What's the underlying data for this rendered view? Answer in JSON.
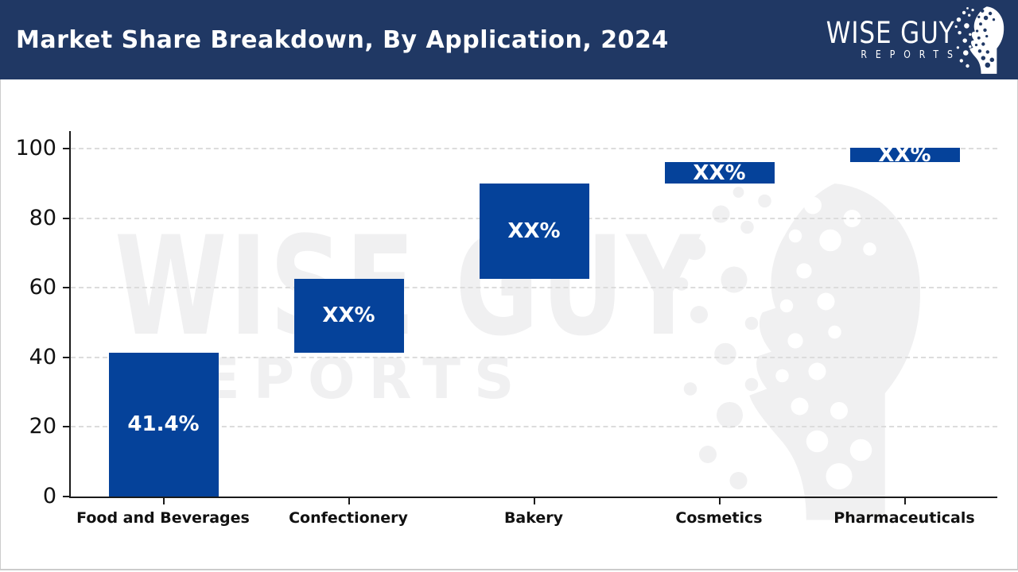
{
  "header": {
    "title": "Market Share Breakdown, By Application, 2024",
    "bg_color": "#203864",
    "logo": {
      "line1": "WISE GUY",
      "line2": "REPORTS",
      "icon": "wiseguy-face-icon"
    }
  },
  "watermark": {
    "line1": "WISE GUY",
    "line2": "REPORTS",
    "icon": "wiseguy-face-icon"
  },
  "chart_data": {
    "type": "bar",
    "subtype": "waterfall",
    "title": "Market Share Breakdown, By Application, 2024",
    "categories": [
      "Food and Beverages",
      "Confectionery",
      "Bakery",
      "Cosmetics",
      "Pharmaceuticals"
    ],
    "segments": [
      {
        "category": "Food and Beverages",
        "start": 0,
        "end": 41.4,
        "label": "41.4%"
      },
      {
        "category": "Confectionery",
        "start": 41.4,
        "end": 62.6,
        "label": "XX%"
      },
      {
        "category": "Bakery",
        "start": 62.6,
        "end": 90,
        "label": "XX%"
      },
      {
        "category": "Cosmetics",
        "start": 90,
        "end": 96,
        "label": "XX%"
      },
      {
        "category": "Pharmaceuticals",
        "start": 96,
        "end": 100.3,
        "label": "XX%"
      }
    ],
    "y_ticks": [
      0,
      20,
      40,
      60,
      80,
      100
    ],
    "ylim": [
      0,
      105
    ],
    "xlabel": "",
    "ylabel": "",
    "grid": "horizontal-dashed",
    "legend": "none",
    "bar_color": "#05429A",
    "bar_label_color": "#ffffff",
    "axis_color": "#1a1a1a"
  }
}
